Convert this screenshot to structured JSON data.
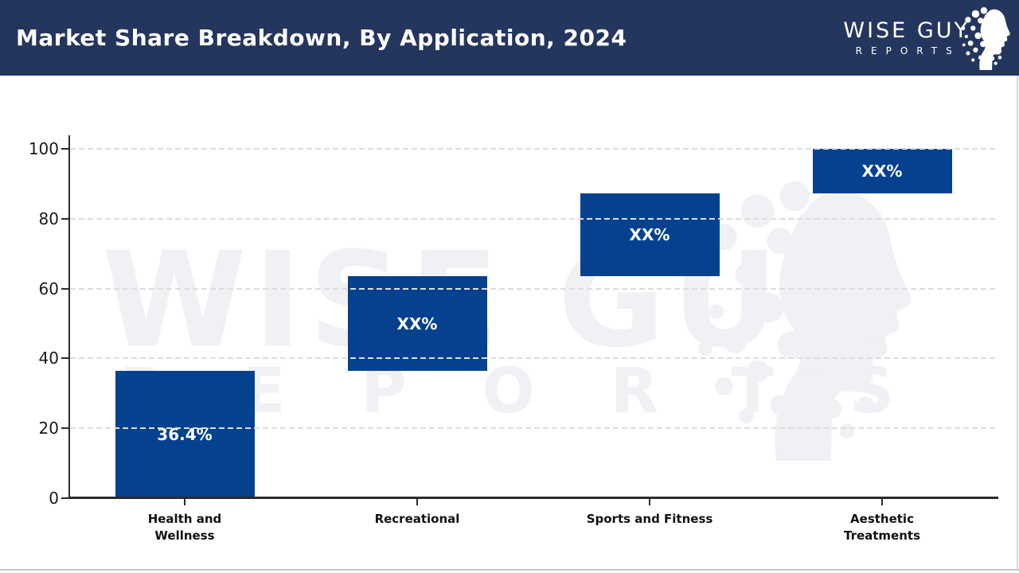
{
  "header": {
    "title": "Market Share Breakdown, By Application, 2024",
    "logo_line1": "WISE GUY",
    "logo_line2": "REPORTS"
  },
  "watermark": {
    "line1": "WISE GUY",
    "line2": "REPORTS"
  },
  "colors": {
    "header_bg": "#24365E",
    "bar": "#05418F",
    "bar_label": "#FFFFFF",
    "axis": "#2B2B2B",
    "grid": "#DDDDDD",
    "watermark": "#F0F1F4"
  },
  "chart_data": {
    "type": "bar",
    "subtype": "waterfall",
    "title": "Market Share Breakdown, By Application, 2024",
    "unit": "%",
    "categories": [
      "Health and Wellness",
      "Recreational",
      "Sports and Fitness",
      "Aesthetic Treatments"
    ],
    "category_label_lines": [
      [
        "Health and",
        "Wellness"
      ],
      [
        "Recreational"
      ],
      [
        "Sports and Fitness"
      ],
      [
        "Aesthetic",
        "Treatments"
      ]
    ],
    "bars": [
      {
        "category": "Health and Wellness",
        "start": 0,
        "end": 36.4,
        "label": "36.4%"
      },
      {
        "category": "Recreational",
        "start": 36.4,
        "end": 63.6,
        "label": "XX%"
      },
      {
        "category": "Sports and Fitness",
        "start": 63.6,
        "end": 87.3,
        "label": "XX%"
      },
      {
        "category": "Aesthetic Treatments",
        "start": 87.3,
        "end": 100,
        "label": "XX%"
      }
    ],
    "ylim": [
      0,
      100
    ],
    "yticks": [
      0,
      20,
      40,
      60,
      80,
      100
    ],
    "grid": "horizontal-dashed",
    "legend": "none"
  }
}
